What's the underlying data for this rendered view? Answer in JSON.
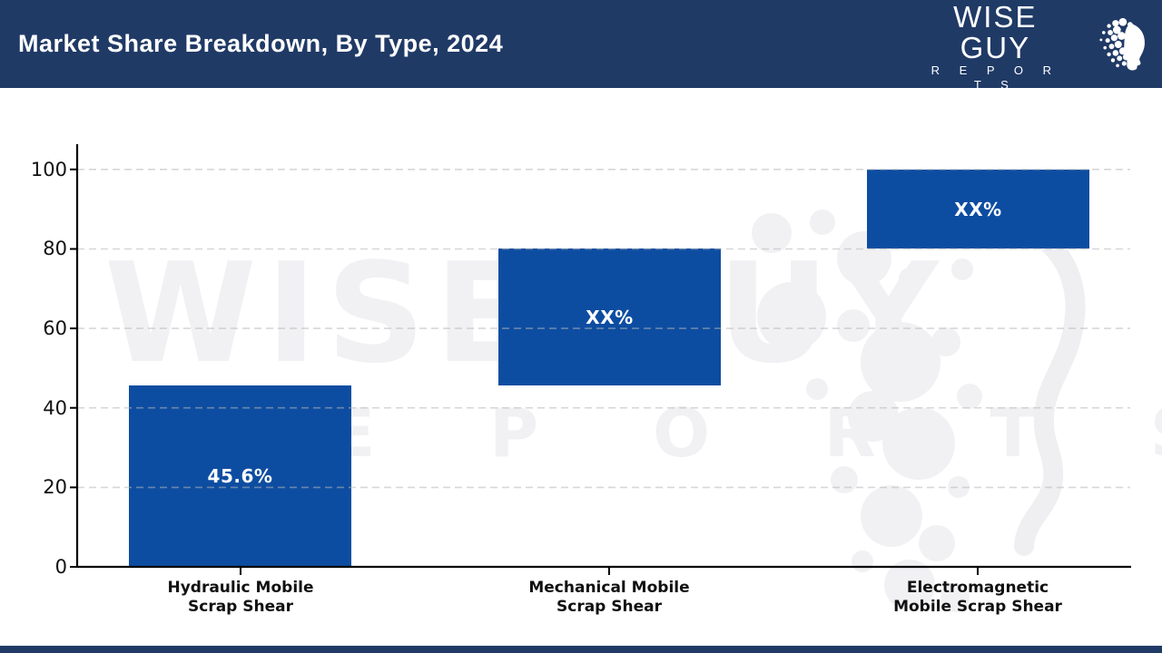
{
  "header": {
    "title": "Market Share Breakdown, By Type, 2024",
    "logo": {
      "line1": "WISE GUY",
      "line2": "R E P O R T S"
    }
  },
  "watermark": {
    "line1": "WISE GUY",
    "line2": "R E P O R T S"
  },
  "colors": {
    "header_bg": "#203a66",
    "bar": "#0d4da1",
    "bar_label_text": "#ffffff",
    "grid": "#dcdcdc",
    "axis": "#000000",
    "watermark": "#f1f1f4"
  },
  "chart_data": {
    "type": "bar",
    "subtype": "waterfall",
    "title": "Market Share Breakdown, By Type, 2024",
    "xlabel": "",
    "ylabel": "",
    "categories": [
      "Hydraulic Mobile Scrap Shear",
      "Mechanical Mobile Scrap Shear",
      "Electromagnetic Mobile Scrap Shear"
    ],
    "category_lines": [
      [
        "Hydraulic Mobile",
        "Scrap Shear"
      ],
      [
        "Mechanical Mobile",
        "Scrap Shear"
      ],
      [
        "Electromagnetic",
        "Mobile Scrap Shear"
      ]
    ],
    "segments": [
      {
        "start": 0,
        "end": 45.6
      },
      {
        "start": 45.6,
        "end": 80
      },
      {
        "start": 80,
        "end": 100
      }
    ],
    "values": [
      45.6,
      34.4,
      20
    ],
    "bar_labels": [
      "45.6%",
      "XX%",
      "XX%"
    ],
    "yticks": [
      0,
      20,
      40,
      60,
      80,
      100
    ],
    "ylim": [
      0,
      105
    ],
    "grid": "horizontal dashed",
    "legend": "none"
  }
}
